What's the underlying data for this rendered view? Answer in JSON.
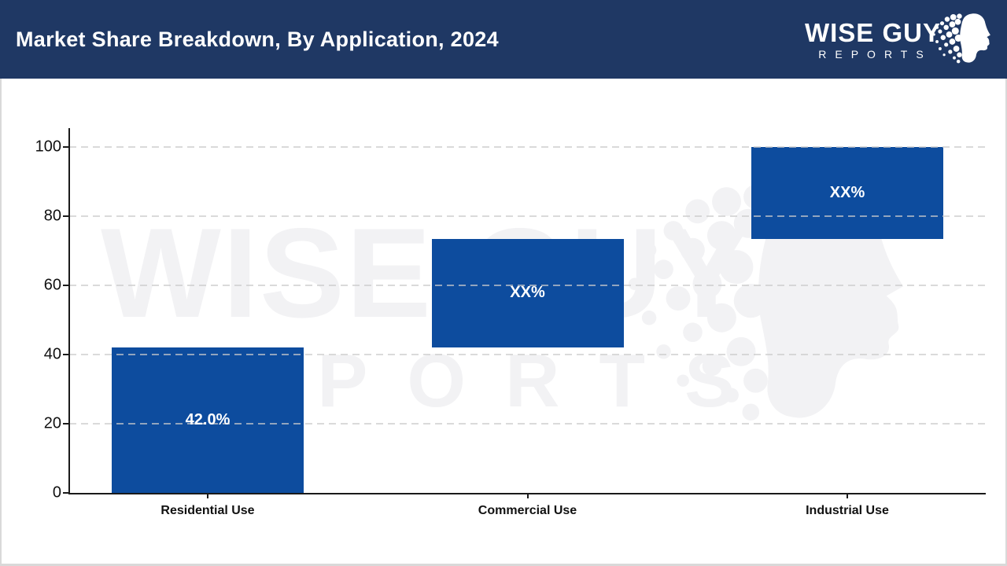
{
  "header": {
    "title": "Market Share Breakdown, By Application, 2024",
    "bg_color": "#1f3864",
    "logo": {
      "line1": "WISE GUY",
      "line2": "REPORTS"
    }
  },
  "watermark": {
    "line1": "WISE GUY",
    "line2": "REPORTS"
  },
  "chart_data": {
    "type": "bar",
    "subtype": "waterfall",
    "title": "Market Share Breakdown, By Application, 2024",
    "categories": [
      "Residential Use",
      "Commercial Use",
      "Industrial Use"
    ],
    "series": [
      {
        "name": "Market Share",
        "segments": [
          {
            "category": "Residential Use",
            "start": 0,
            "end": 42,
            "label": "42.0%"
          },
          {
            "category": "Commercial Use",
            "start": 42,
            "end": 73.5,
            "label": "XX%"
          },
          {
            "category": "Industrial Use",
            "start": 73.5,
            "end": 100,
            "label": "XX%"
          }
        ]
      }
    ],
    "ylim": [
      0,
      100
    ],
    "yticks": [
      0,
      20,
      40,
      60,
      80,
      100
    ],
    "grid": "horizontal dashed",
    "bar_color": "#0d4c9e",
    "bar_label_color": "#ffffff",
    "axis_color": "#1a1a1a",
    "gridline_color": "#d4d4d4",
    "legend": "none"
  }
}
